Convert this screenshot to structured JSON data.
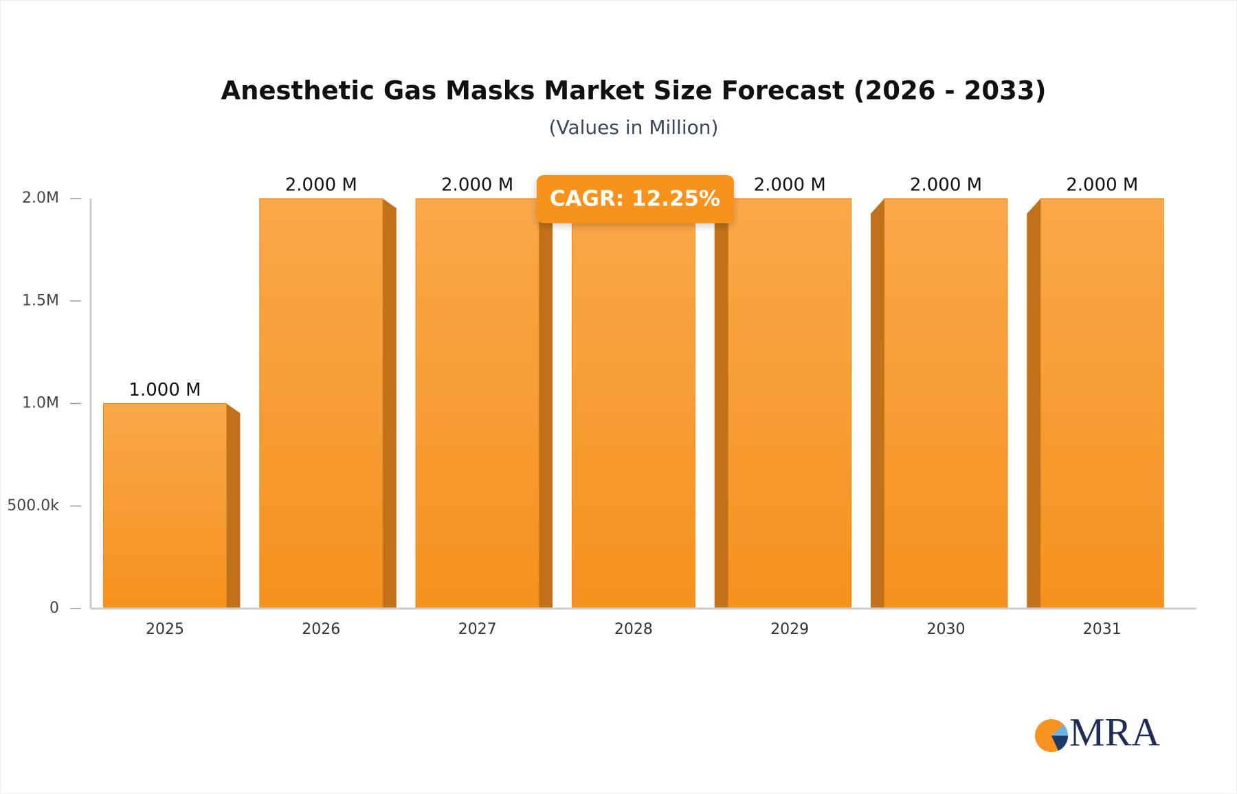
{
  "chart_data": {
    "type": "bar",
    "title": "Anesthetic Gas Masks Market Size Forecast (2026 - 2033)",
    "subtitle": "(Values in Million)",
    "categories": [
      "2025",
      "2026",
      "2027",
      "2028",
      "2029",
      "2030",
      "2031"
    ],
    "values": [
      1000000,
      2000000,
      2000000,
      2000000,
      2000000,
      2000000,
      2000000
    ],
    "value_labels": [
      "1.000 M",
      "2.000 M",
      "2.000 M",
      null,
      "2.000 M",
      "2.000 M",
      "2.000 M"
    ],
    "color": "#f7a035",
    "ylim": [
      0,
      2000000
    ],
    "yticks": [
      0,
      {
        "value": 500000,
        "label": "500.0k"
      },
      {
        "value": 1000000,
        "label": "1.0M"
      },
      {
        "value": 1500000,
        "label": "1.5M"
      },
      {
        "value": 2000000,
        "label": "2.0M"
      }
    ],
    "annotation": "CAGR: 12.25%",
    "logo": "MRA"
  }
}
